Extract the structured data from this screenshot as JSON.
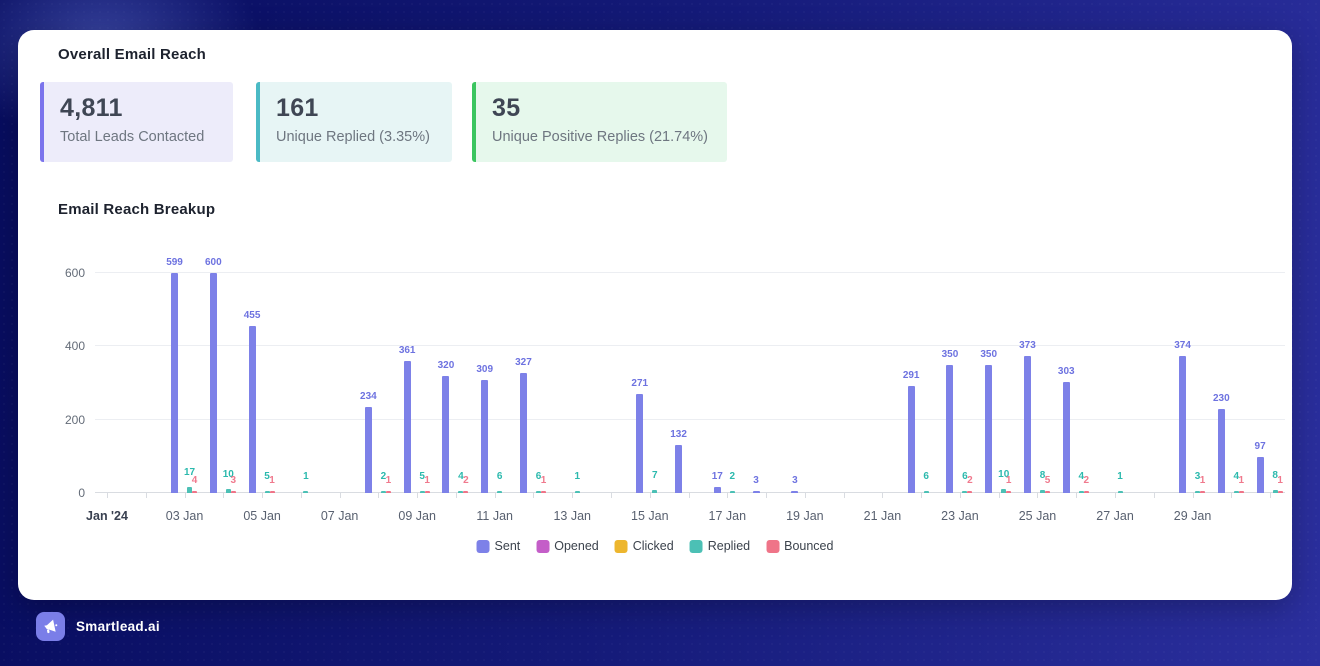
{
  "overall": {
    "title": "Overall Email Reach",
    "stats": [
      {
        "value": "4,811",
        "label": "Total Leads Contacted",
        "accent": "#7b74ec",
        "bg": "#edecfa"
      },
      {
        "value": "161",
        "label": "Unique Replied (3.35%)",
        "accent": "#4bbac5",
        "bg": "#e7f5f5"
      },
      {
        "value": "35",
        "label": "Unique Positive Replies (21.74%)",
        "accent": "#3bc55f",
        "bg": "#e6f8ec"
      }
    ]
  },
  "chart_data": {
    "type": "bar",
    "title": "Email Reach Breakup",
    "month": "Jan 2024",
    "days": [
      1,
      2,
      3,
      4,
      5,
      6,
      7,
      8,
      9,
      10,
      11,
      12,
      13,
      14,
      15,
      16,
      17,
      18,
      19,
      20,
      21,
      22,
      23,
      24,
      25,
      26,
      27,
      28,
      29,
      30,
      31
    ],
    "series": [
      {
        "name": "Sent",
        "color": "#7d81e8",
        "label_color": "#6d72e0",
        "values": [
          0,
          0,
          599,
          600,
          455,
          0,
          0,
          234,
          361,
          320,
          309,
          327,
          0,
          0,
          271,
          132,
          17,
          3,
          3,
          0,
          0,
          291,
          350,
          350,
          373,
          303,
          0,
          0,
          374,
          230,
          97
        ]
      },
      {
        "name": "Opened",
        "color": "#c45ec8",
        "label_color": "#c45ec8",
        "values": [
          0,
          0,
          0,
          0,
          0,
          0,
          0,
          0,
          0,
          0,
          0,
          0,
          0,
          0,
          0,
          0,
          0,
          0,
          0,
          0,
          0,
          0,
          0,
          0,
          0,
          0,
          0,
          0,
          0,
          0,
          0
        ]
      },
      {
        "name": "Clicked",
        "color": "#edb62e",
        "label_color": "#edb62e",
        "values": [
          0,
          0,
          0,
          0,
          0,
          0,
          0,
          0,
          0,
          0,
          0,
          0,
          0,
          0,
          0,
          0,
          0,
          0,
          0,
          0,
          0,
          0,
          0,
          0,
          0,
          0,
          0,
          0,
          0,
          0,
          0
        ]
      },
      {
        "name": "Replied",
        "color": "#4cc0b5",
        "label_color": "#2bb9ad",
        "values": [
          0,
          0,
          17,
          10,
          5,
          1,
          0,
          2,
          5,
          4,
          6,
          6,
          1,
          0,
          7,
          0,
          2,
          0,
          0,
          0,
          0,
          6,
          6,
          10,
          8,
          4,
          1,
          0,
          3,
          4,
          8
        ]
      },
      {
        "name": "Bounced",
        "color": "#ef7488",
        "label_color": "#f0798d",
        "values": [
          0,
          0,
          4,
          3,
          1,
          0,
          0,
          1,
          1,
          2,
          0,
          1,
          0,
          0,
          0,
          0,
          0,
          0,
          0,
          0,
          0,
          0,
          2,
          1,
          5,
          2,
          0,
          0,
          1,
          1,
          1
        ]
      }
    ],
    "y_ticks": [
      0,
      200,
      400,
      600
    ],
    "ylim": [
      0,
      655
    ],
    "x_tick_labels": [
      "Jan '24",
      "03 Jan",
      "05 Jan",
      "07 Jan",
      "09 Jan",
      "11 Jan",
      "13 Jan",
      "15 Jan",
      "17 Jan",
      "19 Jan",
      "21 Jan",
      "23 Jan",
      "25 Jan",
      "27 Jan",
      "29 Jan"
    ],
    "x_tick_days": [
      1,
      3,
      5,
      7,
      9,
      11,
      13,
      15,
      17,
      19,
      21,
      23,
      25,
      27,
      29
    ],
    "legend_position": "bottom",
    "grid": true
  },
  "footer": {
    "brand": "Smartlead.ai"
  }
}
